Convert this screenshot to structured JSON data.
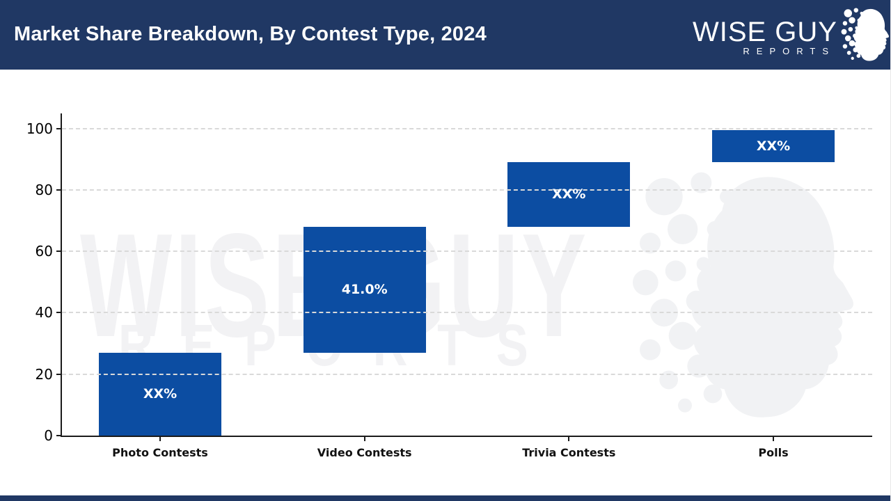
{
  "header": {
    "title": "Market Share Breakdown, By Contest Type, 2024",
    "brand": {
      "line1": "WISE GUY",
      "line2": "REPORTS"
    },
    "background": "#203864"
  },
  "watermark": {
    "line1": "WISE GUY",
    "line2": "REPORTS"
  },
  "footer": {
    "background": "#203864"
  },
  "chart_data": {
    "type": "bar",
    "variant": "waterfall",
    "title": "Market Share Breakdown, By Contest Type, 2024",
    "categories": [
      "Photo Contests",
      "Video Contests",
      "Trivia Contests",
      "Polls"
    ],
    "segments": [
      {
        "category": "Photo Contests",
        "start": 0,
        "end": 27,
        "label": "XX%"
      },
      {
        "category": "Video Contests",
        "start": 27,
        "end": 68,
        "label": "41.0%"
      },
      {
        "category": "Trivia Contests",
        "start": 68,
        "end": 89,
        "label": "XX%"
      },
      {
        "category": "Polls",
        "start": 89,
        "end": 99.5,
        "label": "XX%"
      }
    ],
    "ylim": [
      0,
      104.5
    ],
    "yticks": [
      0,
      20,
      40,
      60,
      80,
      100
    ],
    "xlabel": "",
    "ylabel": "",
    "grid": {
      "axis": "y",
      "style": "dashed",
      "color": "#d9d9d9",
      "on_top_of_bars": true
    },
    "bar_color": "#0C4DA2",
    "bar_label_color": "#ffffff",
    "axis_color": "#1a1a1a",
    "legend": null
  }
}
